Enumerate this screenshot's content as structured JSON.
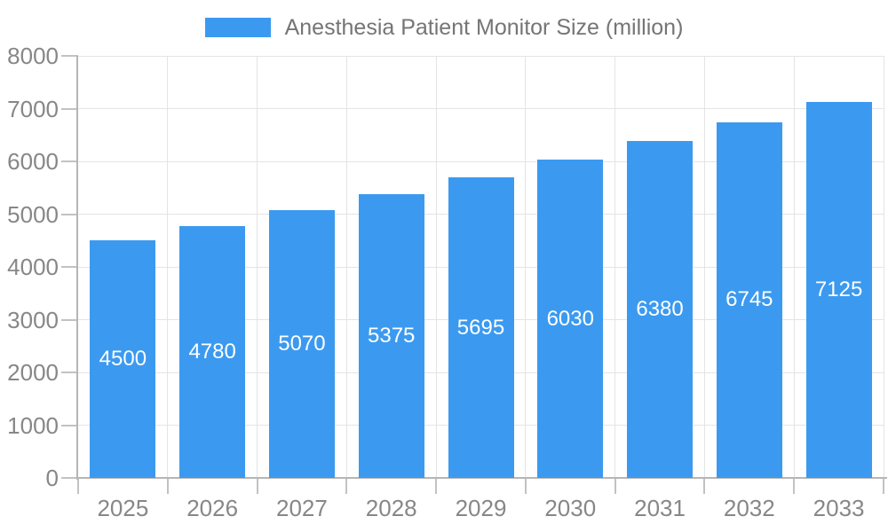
{
  "legend": {
    "label": "Anesthesia Patient Monitor Size (million)"
  },
  "chart_data": {
    "type": "bar",
    "title": "Anesthesia Patient Monitor Size (million)",
    "categories": [
      "2025",
      "2026",
      "2027",
      "2028",
      "2029",
      "2030",
      "2031",
      "2032",
      "2033"
    ],
    "values": [
      4500,
      4780,
      5070,
      5375,
      5695,
      6030,
      6380,
      6745,
      7125
    ],
    "series_name": "Anesthesia Patient Monitor Size (million)",
    "xlabel": "",
    "ylabel": "",
    "ylim": [
      0,
      8000
    ],
    "yticks": [
      0,
      1000,
      2000,
      3000,
      4000,
      5000,
      6000,
      7000,
      8000
    ],
    "grid": true,
    "legend_position": "top-center",
    "value_labels_position": "inside-middle",
    "bar_color": "#3b9af0",
    "value_label_color": "#ffffff",
    "axis_label_color": "#878787",
    "grid_color": "#e4e4e4",
    "axis_line_color": "#b6b6b6",
    "background_color": "#ffffff"
  }
}
